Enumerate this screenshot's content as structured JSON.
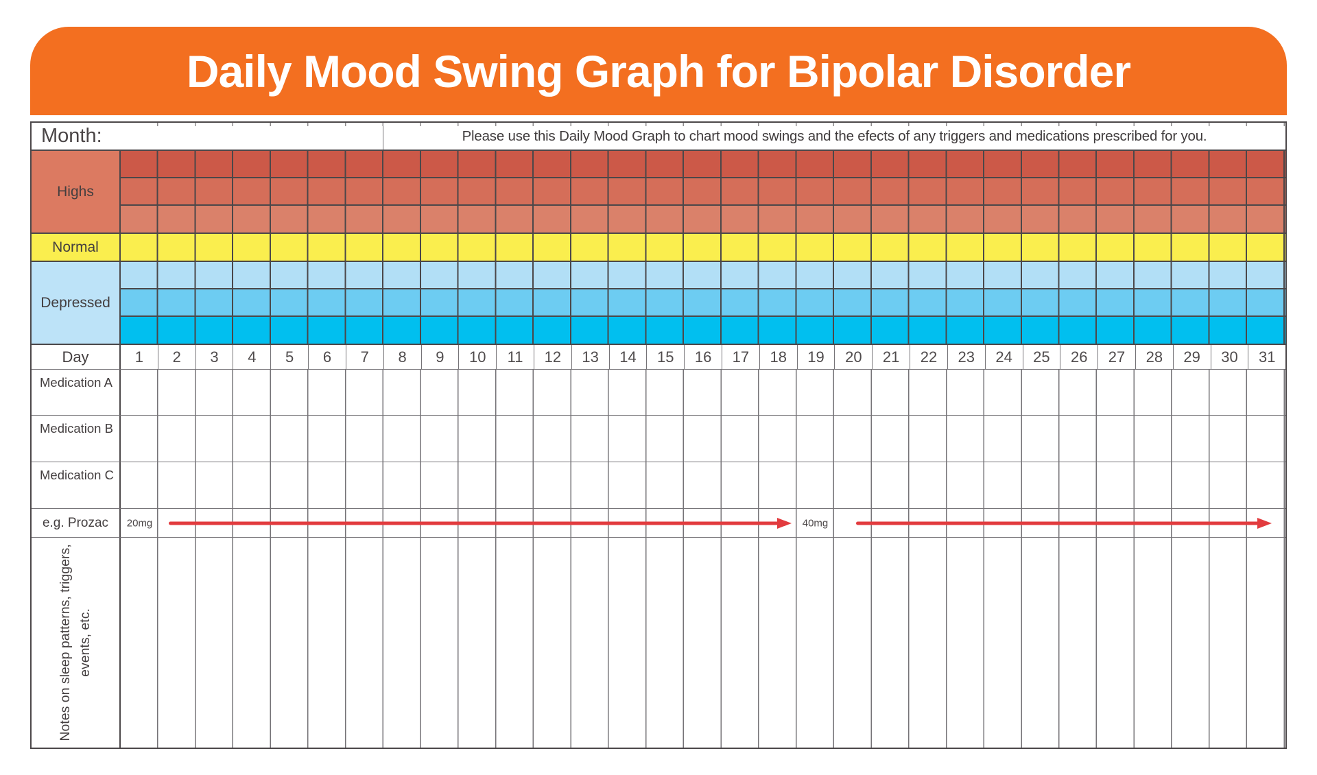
{
  "header": {
    "title": "Daily Mood Swing Graph for Bipolar Disorder"
  },
  "form": {
    "month_label": "Month:",
    "instruction": "Please use this Daily Mood Graph to chart mood swings and the efects of any triggers and medications prescribed for you.",
    "mood_scale": {
      "highs_label": "Highs",
      "normal_label": "Normal",
      "depressed_label": "Depressed"
    },
    "day_label": "Day",
    "days": [
      "1",
      "2",
      "3",
      "4",
      "5",
      "6",
      "7",
      "8",
      "9",
      "10",
      "11",
      "12",
      "13",
      "14",
      "15",
      "16",
      "17",
      "18",
      "19",
      "20",
      "21",
      "22",
      "23",
      "24",
      "25",
      "26",
      "27",
      "28",
      "29",
      "30",
      "31"
    ],
    "medication_rows": [
      "Medication A",
      "Medication B",
      "Medication C"
    ],
    "example_row": {
      "label": "e.g. Prozac",
      "dose_start": "20mg",
      "dose_increase": "40mg"
    },
    "notes_label_line1": "Notes on sleep patterns, triggers,",
    "notes_label_line2": "events, etc."
  },
  "colors": {
    "header_orange": "#F36F20",
    "mania_dark": "#CC5948",
    "mania_mid": "#D56E59",
    "mania_light": "#DA816A",
    "highs_label_bg": "#DC7A61",
    "normal_yellow": "#FAEE4E",
    "depressed_light": "#B2DFF6",
    "depressed_mid": "#6DCCF2",
    "depressed_deep": "#01BFEF",
    "depressed_label_bg": "#BDE3F8",
    "arrow_red": "#E23B3E",
    "grid_dark": "#4B4749",
    "grid_gray": "#757377"
  }
}
